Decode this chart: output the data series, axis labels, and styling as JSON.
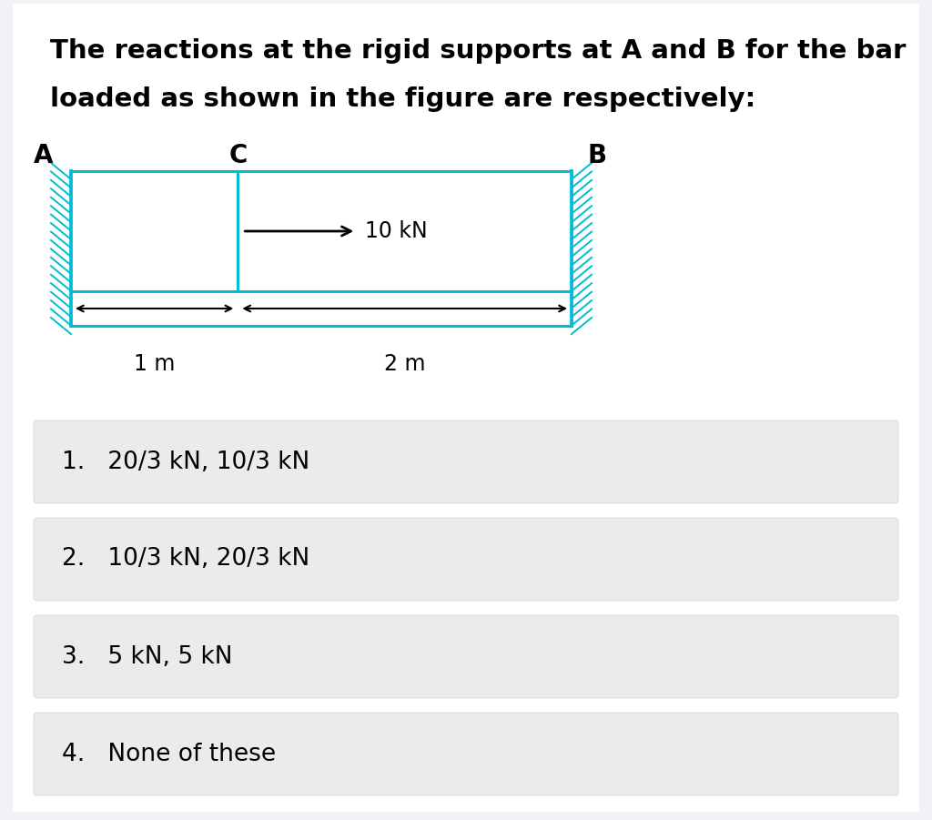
{
  "title_line1": "The reactions at the rigid supports at A and B for the bar",
  "title_line2": "loaded as shown in the figure are respectively:",
  "title_fontsize": 21,
  "title_fontweight": "bold",
  "page_bg": "#f0f2f5",
  "card_bg": "#ffffff",
  "options": [
    "1.   20/3 kN, 10/3 kN",
    "2.   10/3 kN, 20/3 kN",
    "3.   5 kN, 5 kN",
    "4.   None of these"
  ],
  "option_fontsize": 19,
  "bar_color": "#00bcd4",
  "label_A": "A",
  "label_B": "B",
  "label_C": "C",
  "force_label": "10 kN",
  "dim1_label": "1 m",
  "dim2_label": "2 m",
  "option_box_color": "#ebebeb",
  "option_box_edge": "#d5d5d5"
}
